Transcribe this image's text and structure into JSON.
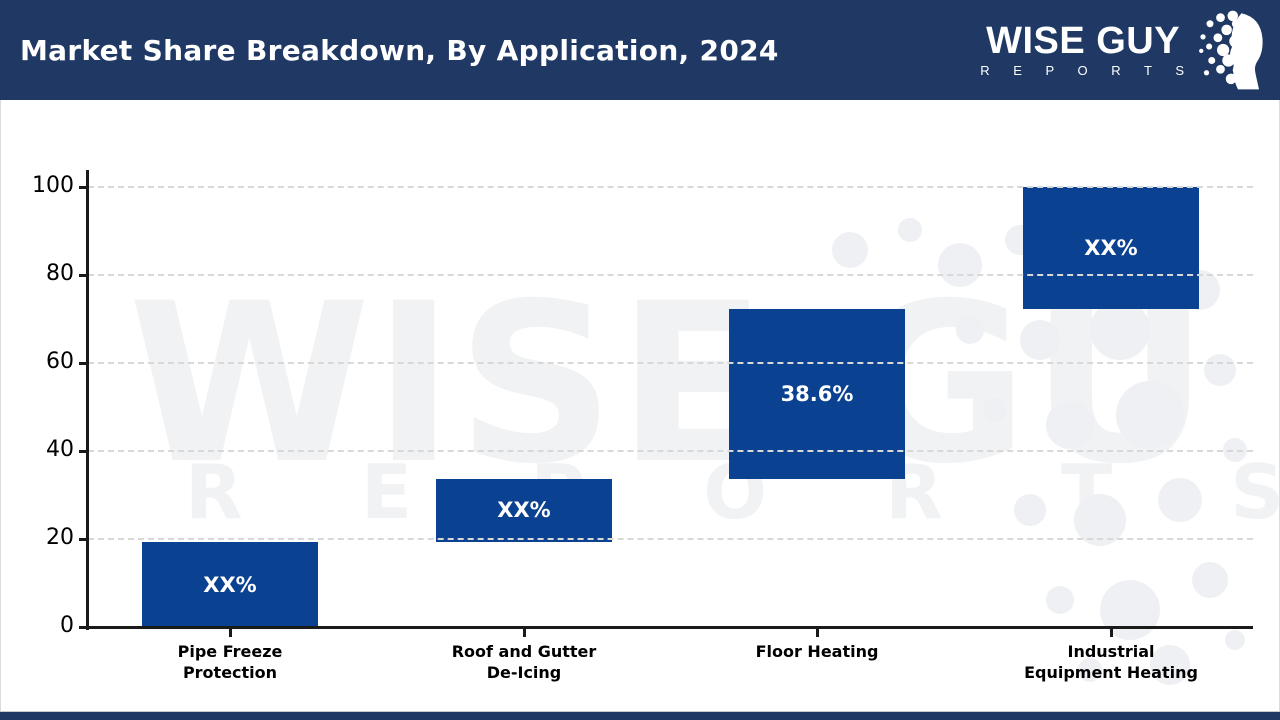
{
  "header": {
    "title": "Market Share Breakdown, By Application, 2024",
    "bg_color": "#1f3864",
    "logo": {
      "line1": "WISE GUY",
      "line2": "R E P O R T S"
    }
  },
  "watermark": {
    "line1": "WISE GU",
    "line2": "R E P O R T S"
  },
  "chart_data": {
    "type": "bar",
    "subtype": "floating-waterfall",
    "title": "Market Share Breakdown, By Application, 2024",
    "categories": [
      {
        "name": "Pipe Freeze Protection",
        "lines": [
          "Pipe Freeze",
          "Protection"
        ]
      },
      {
        "name": "Roof and Gutter De-Icing",
        "lines": [
          "Roof and Gutter",
          "De-Icing"
        ]
      },
      {
        "name": "Floor Heating",
        "lines": [
          "Floor Heating"
        ]
      },
      {
        "name": "Industrial Equipment Heating",
        "lines": [
          "Industrial",
          "Equipment Heating"
        ]
      }
    ],
    "segments": [
      {
        "category": "Pipe Freeze Protection",
        "start": 0,
        "end": 19.3,
        "share": 19.3,
        "label": "XX%"
      },
      {
        "category": "Roof and Gutter De-Icing",
        "start": 19.3,
        "end": 33.7,
        "share": 14.4,
        "label": "XX%"
      },
      {
        "category": "Floor Heating",
        "start": 33.7,
        "end": 72.3,
        "share": 38.6,
        "label": "38.6%"
      },
      {
        "category": "Industrial Equipment Heating",
        "start": 72.3,
        "end": 100,
        "share": 27.7,
        "label": "XX%"
      }
    ],
    "ylabel": "",
    "xlabel": "",
    "ylim": [
      0,
      100
    ],
    "yticks": [
      0,
      20,
      40,
      60,
      80,
      100
    ],
    "grid": {
      "axis": "y",
      "style": "dashed",
      "color": "#d8d8d8",
      "on_top": true
    },
    "legend": "none",
    "bar_color": "#0a4191",
    "bar_label_color": "#ffffff"
  },
  "footer": {
    "bg_color": "#1f3864"
  }
}
